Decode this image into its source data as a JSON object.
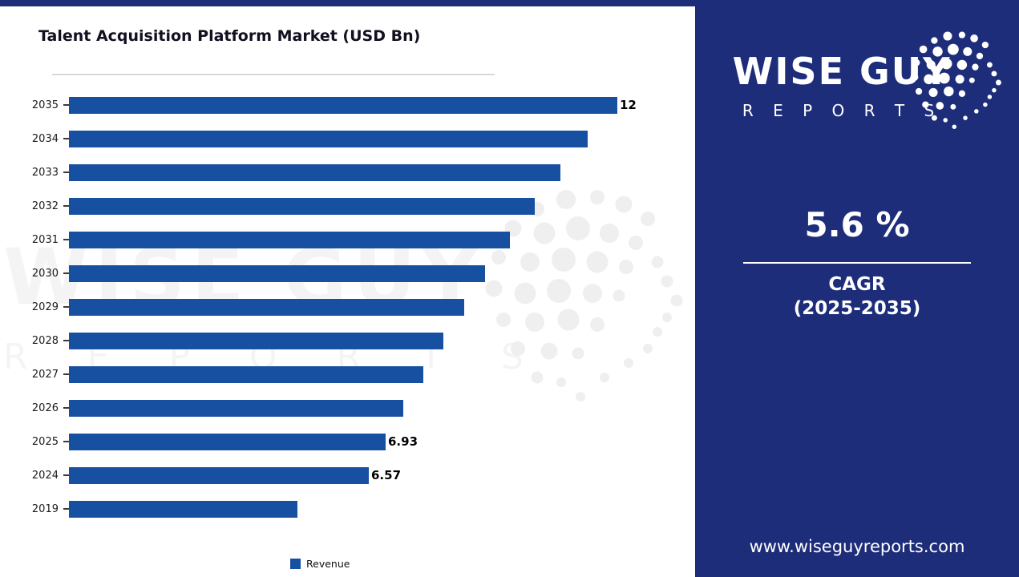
{
  "header": {
    "title": "Talent Acquisition Platform Market (USD Bn)"
  },
  "chart_data": {
    "type": "bar",
    "orientation": "horizontal",
    "title": "Talent Acquisition Platform Market (USD Bn)",
    "series_name": "Revenue",
    "categories": [
      "2035",
      "2034",
      "2033",
      "2032",
      "2031",
      "2030",
      "2029",
      "2028",
      "2027",
      "2026",
      "2025",
      "2024",
      "2019"
    ],
    "values": [
      12,
      11.35,
      10.75,
      10.2,
      9.65,
      9.1,
      8.65,
      8.2,
      7.75,
      7.32,
      6.93,
      6.57,
      5.0
    ],
    "data_labels": [
      "12",
      "",
      "",
      "",
      "",
      "",
      "",
      "",
      "",
      "",
      "6.93",
      "6.57",
      ""
    ],
    "xlim": [
      0,
      12
    ],
    "bar_color": "#1750a0",
    "grid": false,
    "legend_position": "bottom-center"
  },
  "legend": {
    "label": "Revenue"
  },
  "watermark": {
    "line1": "WISE GUY",
    "line2": "R E P O R T S"
  },
  "sidebar": {
    "brand_line1": "WISE GUY",
    "brand_line2": "R E P O R T S",
    "cagr_value": "5.6 %",
    "cagr_label": "CAGR",
    "cagr_period": "(2025-2035)",
    "website": "www.wiseguyreports.com",
    "bg_color": "#1e2d7a"
  }
}
